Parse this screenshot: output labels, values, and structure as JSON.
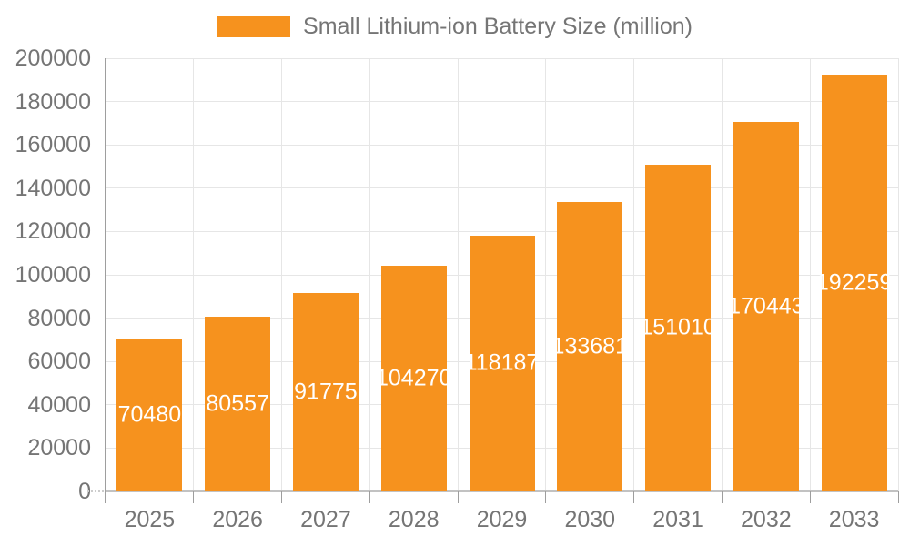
{
  "chart_data": {
    "type": "bar",
    "title": "Small Lithium-ion Battery Size (million)",
    "legend": {
      "position": "top-center",
      "entries": [
        {
          "label": "Small Lithium-ion Battery Size (million)",
          "color": "#F6921E"
        }
      ]
    },
    "categories": [
      "2025",
      "2026",
      "2027",
      "2028",
      "2029",
      "2030",
      "2031",
      "2032",
      "2033"
    ],
    "series": [
      {
        "name": "Small Lithium-ion Battery Size (million)",
        "values": [
          70480,
          80557,
          91775,
          104270,
          118187,
          133681,
          151010,
          170443,
          192259
        ]
      }
    ],
    "value_labels": [
      "70480",
      "80557",
      "91775",
      "104270",
      "118187",
      "133681",
      "151010",
      "170443",
      "192259"
    ],
    "value_label_position": "inside-center",
    "xlabel": "",
    "ylabel": "",
    "ylim": [
      0,
      200000
    ],
    "y_tick_labels": [
      "0",
      "20000",
      "40000",
      "60000",
      "80000",
      "100000",
      "120000",
      "140000",
      "160000",
      "180000",
      "200000"
    ],
    "grid": "horizontal-and-vertical",
    "colors": {
      "bar": "#F6921E",
      "value_label_text": "#FFFFFF",
      "axis_text": "#757575",
      "gridline": "#E6E6E6",
      "axis_line": "#9E9E9E",
      "baseline": "#C2C2C2",
      "background": "#FFFFFF"
    }
  }
}
